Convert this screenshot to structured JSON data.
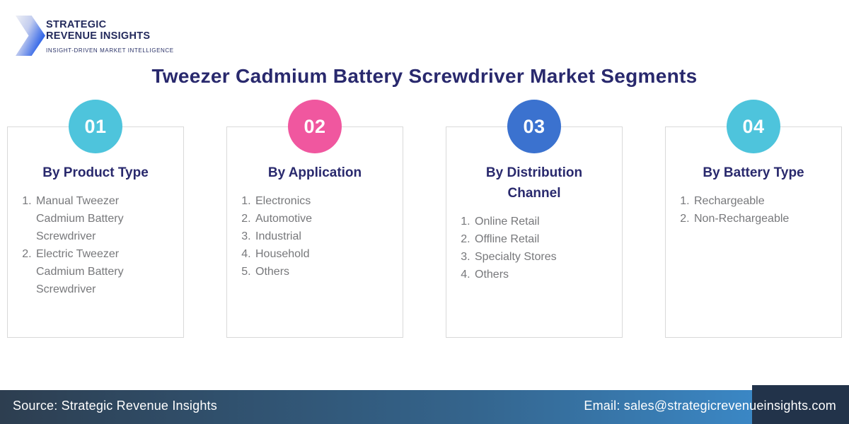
{
  "logo": {
    "name_line1": "STRATEGIC",
    "name_line2": "REVENUE INSIGHTS",
    "tagline": "INSIGHT-DRIVEN MARKET INTELLIGENCE"
  },
  "page_title": "Tweezer Cadmium Battery Screwdriver Market Segments",
  "colors": {
    "navy_heading": "#29296d",
    "list_text": "#77787b",
    "cyan_accent": "#4ec4dc",
    "pink_accent": "#f0579f",
    "blue_accent": "#3b72cf",
    "footer_gradient_left": "#2d3e50",
    "footer_gradient_right": "#3d93d8",
    "footer_right_block": "#22334a",
    "card_border": "#d9d9d9"
  },
  "cards": [
    {
      "number": "01",
      "accent": "#4ec4dc",
      "title": "By Product Type",
      "items": [
        "Manual Tweezer Cadmium Battery Screwdriver",
        "Electric Tweezer Cadmium Battery Screwdriver"
      ]
    },
    {
      "number": "02",
      "accent": "#f0579f",
      "title": "By Application",
      "items": [
        "Electronics",
        "Automotive",
        "Industrial",
        "Household",
        "Others"
      ]
    },
    {
      "number": "03",
      "accent": "#3b72cf",
      "title": "By Distribution Channel",
      "items": [
        "Online Retail",
        "Offline Retail",
        "Specialty Stores",
        "Others"
      ]
    },
    {
      "number": "04",
      "accent": "#4ec4dc",
      "title": "By Battery Type",
      "items": [
        "Rechargeable",
        "Non-Rechargeable"
      ]
    }
  ],
  "footer": {
    "source": "Source: Strategic Revenue Insights",
    "email": "Email: sales@strategicrevenueinsights.com"
  }
}
